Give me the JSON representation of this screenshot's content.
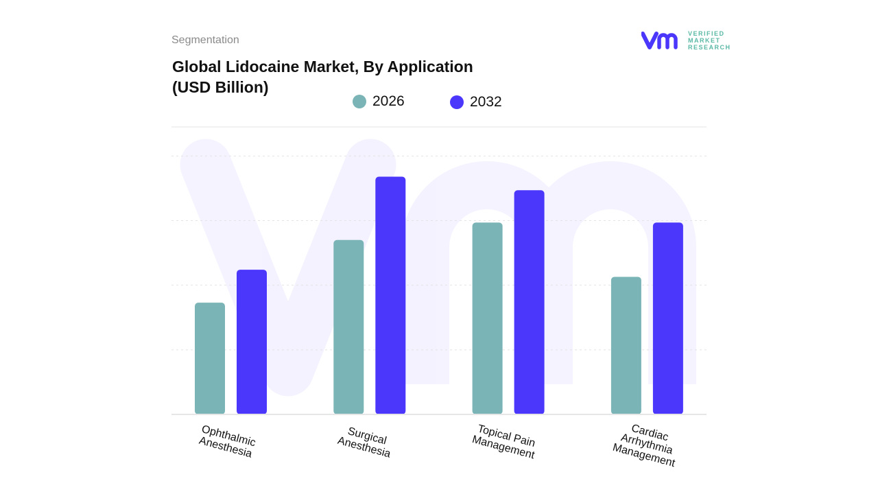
{
  "header": {
    "section": "Segmentation",
    "title_line1": "Global Lidocaine Market, By Application",
    "title_line2": "(USD Billion)"
  },
  "logo": {
    "line1": "VERIFIED",
    "line2": "MARKET",
    "line3": "RESEARCH",
    "mark": "vmr"
  },
  "chart_data": {
    "type": "bar",
    "title": "Global Lidocaine Market, By Application (USD Billion)",
    "categories": [
      "Ophthalmic Anesthesia",
      "Surgical Anesthesia",
      "Topical Pain Management",
      "Cardiac Arrhythmia Management"
    ],
    "category_lines": [
      [
        "Ophthalmic",
        "Anesthesia"
      ],
      [
        "Surgical",
        "Anesthesia"
      ],
      [
        "Topical Pain",
        "Management"
      ],
      [
        "Cardiac",
        "Arrhythmia",
        "Management"
      ]
    ],
    "series": [
      {
        "name": "2026",
        "color": "#7ab4b6",
        "values": [
          1.73,
          2.7,
          2.97,
          2.13
        ]
      },
      {
        "name": "2032",
        "color": "#4b37fb",
        "values": [
          2.24,
          3.68,
          3.47,
          2.97
        ]
      }
    ],
    "ylim": [
      0,
      4.45
    ],
    "y_gridlines": [
      1,
      2,
      3,
      4
    ],
    "y_tick_labels_shown": false,
    "grid": true,
    "legend": "top-center"
  }
}
